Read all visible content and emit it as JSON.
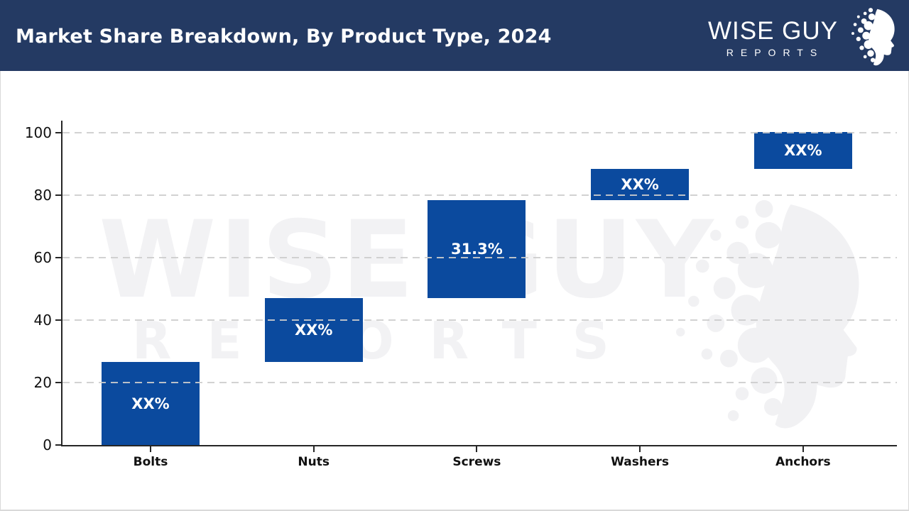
{
  "header": {
    "title": "Market Share Breakdown, By Product Type, 2024",
    "logo": {
      "line1": "WISE GUY",
      "line2": "REPORTS"
    }
  },
  "watermark": {
    "line1": "WISE GUY",
    "line2": "REPORTS"
  },
  "chart_data": {
    "type": "bar",
    "subtype": "waterfall",
    "title": "Market Share Breakdown, By Product Type, 2024",
    "xlabel": "",
    "ylabel": "",
    "categories": [
      "Bolts",
      "Nuts",
      "Screws",
      "Washers",
      "Anchors"
    ],
    "bars": [
      {
        "category": "Bolts",
        "base": 0,
        "top": 26.5,
        "value": 26.5,
        "label": "XX%"
      },
      {
        "category": "Nuts",
        "base": 26.5,
        "top": 47.0,
        "value": 20.5,
        "label": "XX%"
      },
      {
        "category": "Screws",
        "base": 47.0,
        "top": 78.3,
        "value": 31.3,
        "label": "31.3%"
      },
      {
        "category": "Washers",
        "base": 78.3,
        "top": 88.4,
        "value": 10.1,
        "label": "XX%"
      },
      {
        "category": "Anchors",
        "base": 88.4,
        "top": 100.2,
        "value": 11.8,
        "label": "XX%"
      }
    ],
    "y_ticks": [
      0,
      20,
      40,
      60,
      80,
      100
    ],
    "ylim": [
      0,
      104
    ],
    "grid": "horizontal-dashed",
    "legend": "none",
    "bar_color": "#0b4a9e"
  },
  "colors": {
    "header_bg": "#243a63",
    "bar": "#0b4a9e",
    "grid": "#cdcdcd",
    "axis": "#262626",
    "watermark": "#f2f2f4",
    "frame_border": "#d9d9d9"
  }
}
